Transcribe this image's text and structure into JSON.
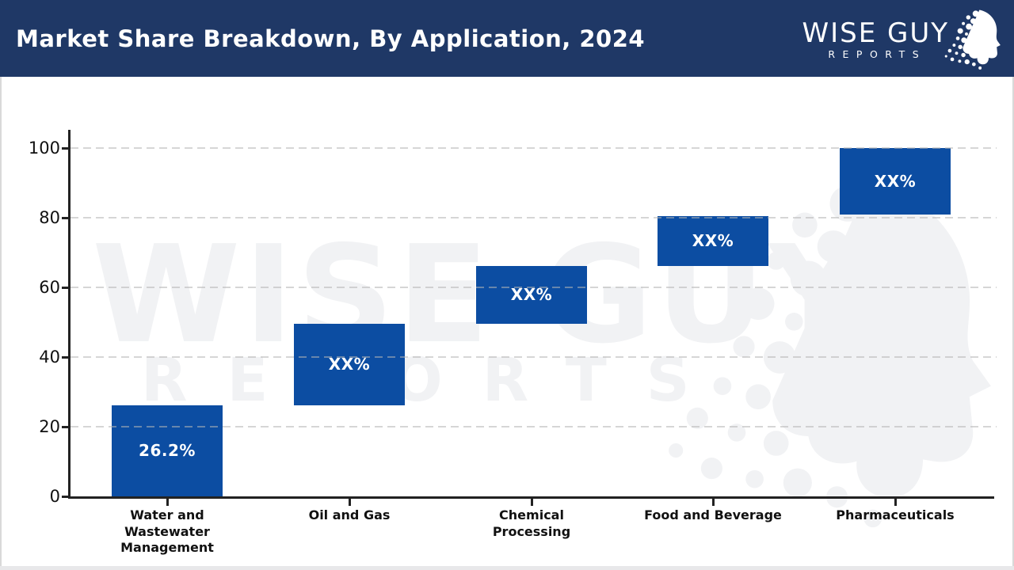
{
  "header": {
    "title": "Market Share Breakdown, By Application, 2024",
    "logo": {
      "line1": "WISE GUY",
      "line2": "REPORTS"
    }
  },
  "watermark": {
    "line1": "WISE GUY",
    "line2": "REPORTS"
  },
  "colors": {
    "header_bg": "#1f3866",
    "bar_blue": "#0c4da2",
    "axis": "#222222",
    "gridline": "#dedede",
    "bar_label_text": "#ffffff",
    "watermark": "#f1f2f4"
  },
  "chart_data": {
    "type": "bar",
    "subtype": "waterfall",
    "title": "Market Share Breakdown, By Application, 2024",
    "xlabel": "",
    "ylabel": "",
    "ylim": [
      0,
      100
    ],
    "yticks": [
      0,
      20,
      40,
      60,
      80,
      100
    ],
    "grid": "horizontal-dashed",
    "legend": "none",
    "categories": [
      "Water and Wastewater Management",
      "Oil and Gas",
      "Chemical Processing",
      "Food and Beverage",
      "Pharmaceuticals"
    ],
    "bars": [
      {
        "category": "Water and Wastewater Management",
        "lines": [
          "Water and",
          "Wastewater",
          "Management"
        ],
        "start": 0,
        "end": 26.2,
        "label": "26.2%"
      },
      {
        "category": "Oil and Gas",
        "lines": [
          "Oil and Gas"
        ],
        "start": 26.2,
        "end": 49.5,
        "label": "XX%"
      },
      {
        "category": "Chemical Processing",
        "lines": [
          "Chemical",
          "Processing"
        ],
        "start": 49.5,
        "end": 66.2,
        "label": "XX%"
      },
      {
        "category": "Food and Beverage",
        "lines": [
          "Food and Beverage"
        ],
        "start": 66.2,
        "end": 80.5,
        "label": "XX%"
      },
      {
        "category": "Pharmaceuticals",
        "lines": [
          "Pharmaceuticals"
        ],
        "start": 81,
        "end": 100,
        "label": "XX%"
      }
    ]
  }
}
